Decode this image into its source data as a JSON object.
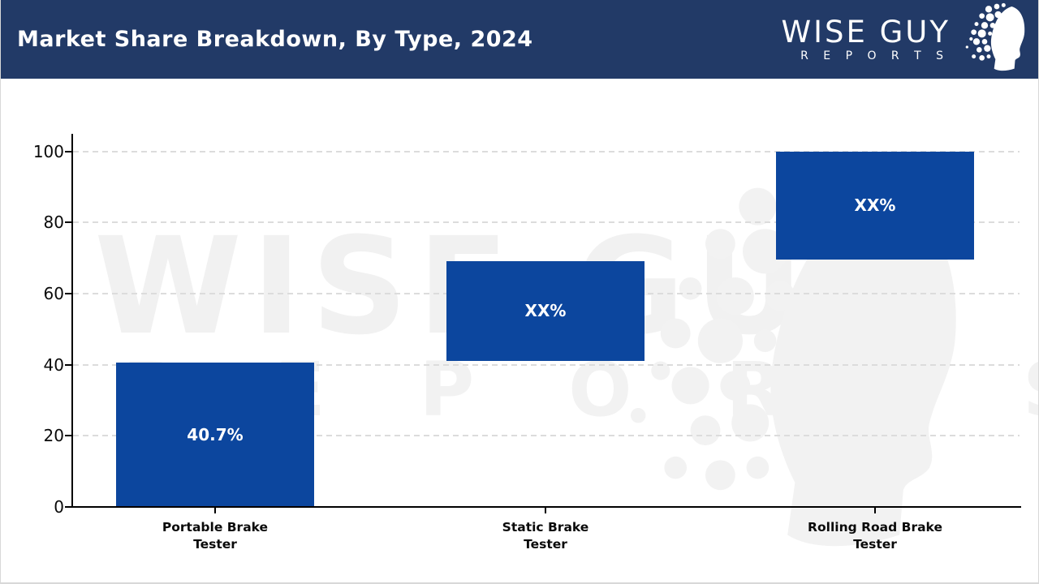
{
  "header": {
    "title": "Market Share Breakdown, By Type, 2024",
    "logo": {
      "name": "WISE GUY",
      "sub": "R E P O R T S"
    }
  },
  "watermark": {
    "line1": "WISE GUY",
    "line2": "R E P O R T S"
  },
  "chart_data": {
    "type": "bar",
    "variant": "floating-segment-bars",
    "title": "Market Share Breakdown, By Type, 2024",
    "categories": [
      "Portable Brake Tester",
      "Static Brake Tester",
      "Rolling Road Brake Tester"
    ],
    "category_lines": [
      [
        "Portable Brake",
        "Tester"
      ],
      [
        "Static Brake",
        "Tester"
      ],
      [
        "Rolling Road Brake",
        "Tester"
      ]
    ],
    "bars": [
      {
        "category": "Portable Brake Tester",
        "from": 0,
        "to": 40.7,
        "label": "40.7%"
      },
      {
        "category": "Static Brake Tester",
        "from": 40.7,
        "to": 69.2,
        "label": "XX%"
      },
      {
        "category": "Rolling Road Brake Tester",
        "from": 69.2,
        "to": 100,
        "label": "XX%"
      }
    ],
    "yticks": [
      0,
      20,
      40,
      60,
      80,
      100
    ],
    "ylim": [
      0,
      105
    ],
    "xlabel": "",
    "ylabel": "",
    "grid": "horizontal-dashed",
    "legend": "none",
    "colors": {
      "bar": "#0C469E",
      "bar_label": "#FFFFFF",
      "grid": "#DCDCDC",
      "axis": "#000000",
      "header_bg": "#223A67",
      "header_text": "#FFFFFF",
      "watermark": "#F1F1F1"
    }
  }
}
